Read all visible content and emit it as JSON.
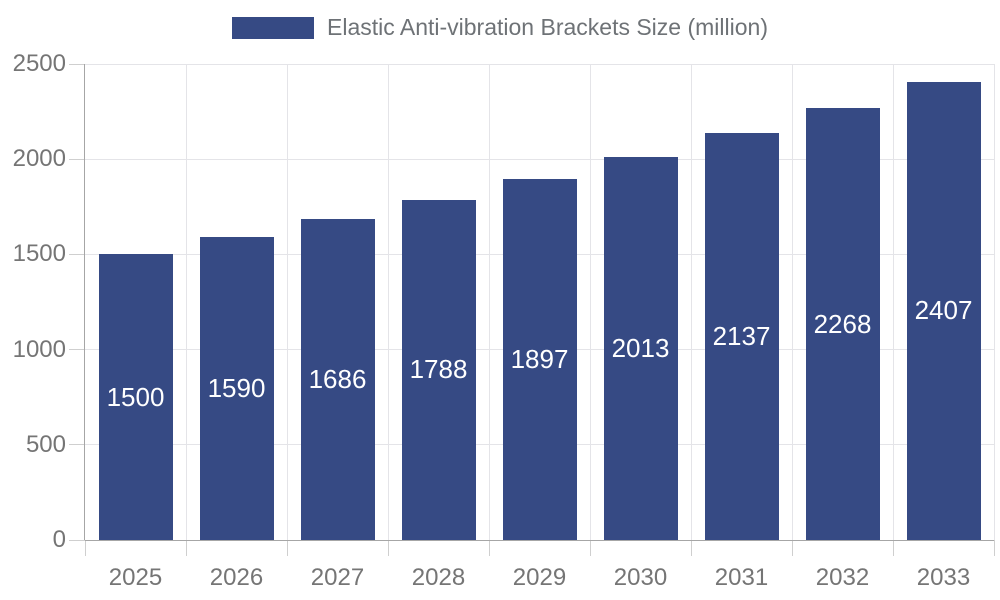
{
  "legend": {
    "label": "Elastic Anti-vibration Brackets Size (million)"
  },
  "chart_data": {
    "type": "bar",
    "title": "",
    "xlabel": "",
    "ylabel": "",
    "categories": [
      "2025",
      "2026",
      "2027",
      "2028",
      "2029",
      "2030",
      "2031",
      "2032",
      "2033"
    ],
    "values": [
      1500,
      1590,
      1686,
      1788,
      1897,
      2013,
      2137,
      2268,
      2407
    ],
    "series_name": "Elastic Anti-vibration Brackets Size (million)",
    "ylim": [
      0,
      2500
    ],
    "yticks": [
      0,
      500,
      1000,
      1500,
      2000,
      2500
    ],
    "grid": true,
    "legend_position": "top",
    "value_labels": "inside-center"
  },
  "colors": {
    "bar": "#364a84",
    "bar_label": "#ffffff",
    "grid": "#e4e4e8",
    "axis": "#a6a6a6",
    "tick": "#cfcfcf",
    "axis_text": "#757575",
    "legend_text": "#6e7276",
    "background": "#ffffff"
  }
}
